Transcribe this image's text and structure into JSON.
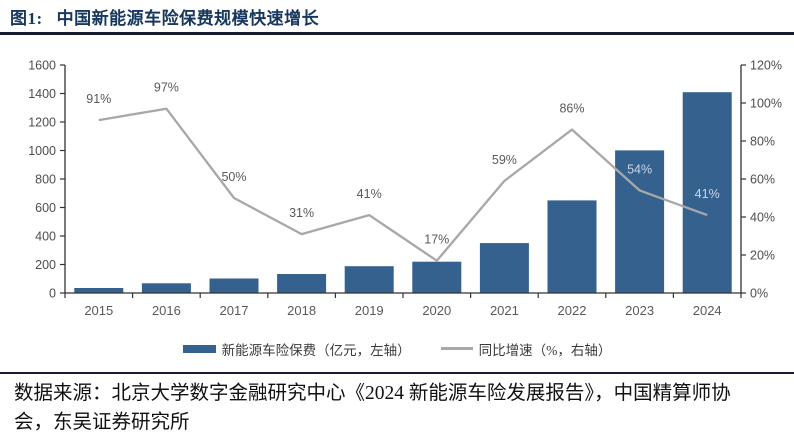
{
  "header": {
    "figure_label": "图1:",
    "title": "中国新能源车险保费规模快速增长"
  },
  "chart_data": {
    "type": "combo",
    "categories": [
      "2015",
      "2016",
      "2017",
      "2018",
      "2019",
      "2020",
      "2021",
      "2022",
      "2023",
      "2024"
    ],
    "series": [
      {
        "name": "新能源车险保费（亿元，左轴）",
        "type": "bar",
        "axis": "left",
        "color": "#35618F",
        "values": [
          35,
          68,
          102,
          133,
          188,
          220,
          350,
          650,
          1001,
          1409
        ]
      },
      {
        "name": "同比增速（%，右轴）",
        "type": "line",
        "axis": "right",
        "color": "#A8A8A8",
        "values": [
          91,
          97,
          50,
          31,
          41,
          17,
          59,
          86,
          54,
          41
        ],
        "data_labels": [
          "91%",
          "97%",
          "50%",
          "31%",
          "41%",
          "17%",
          "59%",
          "86%",
          "54%",
          "41%"
        ],
        "data_label_colors": [
          "#595959",
          "#595959",
          "#595959",
          "#595959",
          "#595959",
          "#595959",
          "#595959",
          "#595959",
          "#CBD5E3",
          "#CBD5E3"
        ]
      }
    ],
    "left_axis": {
      "min": 0,
      "max": 1600,
      "step": 200,
      "tick_labels": [
        "0",
        "200",
        "400",
        "600",
        "800",
        "1000",
        "1200",
        "1400",
        "1600"
      ]
    },
    "right_axis": {
      "min": 0,
      "max": 120,
      "step": 20,
      "tick_labels": [
        "0%",
        "20%",
        "40%",
        "60%",
        "80%",
        "100%",
        "120%"
      ]
    },
    "grid": false,
    "legend_position": "bottom",
    "title": "中国新能源车险保费规模快速增长"
  },
  "legend": {
    "items": [
      {
        "label": "新能源车险保费（亿元，左轴）",
        "swatch": "bar",
        "color": "#35618F"
      },
      {
        "label": "同比增速（%，右轴）",
        "swatch": "line",
        "color": "#A8A8A8"
      }
    ]
  },
  "footer": {
    "source": "数据来源：北京大学数字金融研究中心《2024 新能源车险发展报告》，中国精算师协会，东吴证券研究所"
  },
  "colors": {
    "title": "#17375E",
    "bar": "#35618F",
    "line": "#A8A8A8",
    "axis": "#333333",
    "rule": "#161c2e"
  }
}
